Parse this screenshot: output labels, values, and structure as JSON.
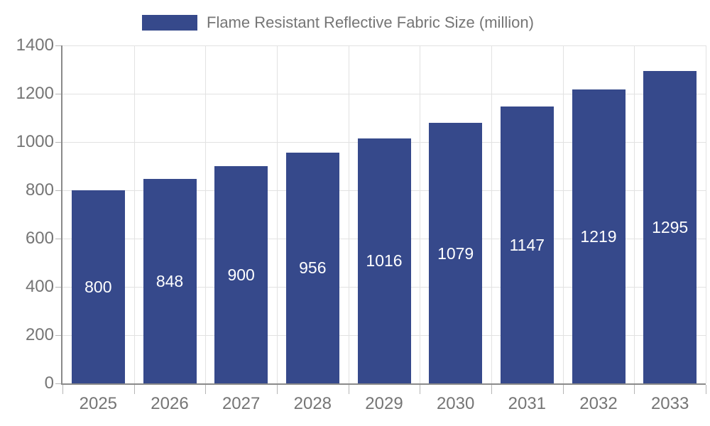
{
  "legend": {
    "label": "Flame Resistant Reflective Fabric Size (million)",
    "swatch_color": "#36498B"
  },
  "chart_data": {
    "type": "bar",
    "categories": [
      "2025",
      "2026",
      "2027",
      "2028",
      "2029",
      "2030",
      "2031",
      "2032",
      "2033"
    ],
    "values": [
      800,
      848,
      900,
      956,
      1016,
      1079,
      1147,
      1219,
      1295
    ],
    "title": "Flame Resistant Reflective Fabric Size (million)",
    "xlabel": "",
    "ylabel": "",
    "ylim": [
      0,
      1400
    ],
    "ytick_step": 200,
    "bar_color": "#36498B",
    "value_label_color": "#ffffff",
    "axis_text_color": "#757575",
    "grid": true,
    "legend_position": "top"
  }
}
